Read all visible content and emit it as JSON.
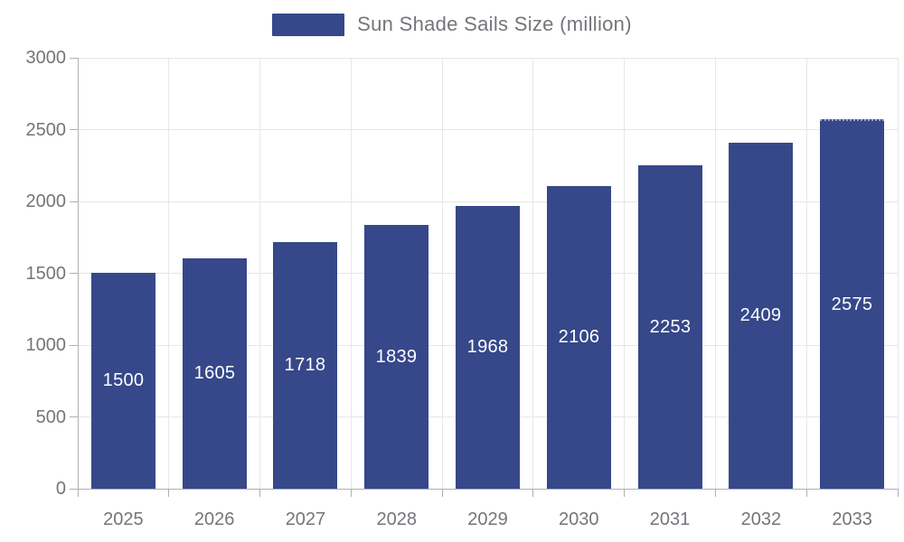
{
  "legend": {
    "label": "Sun Shade Sails Size (million)",
    "swatch_color": "#36488a"
  },
  "chart_data": {
    "type": "bar",
    "title": "Sun Shade Sails Size (million)",
    "series_name": "Sun Shade Sails Size (million)",
    "categories": [
      "2025",
      "2026",
      "2027",
      "2028",
      "2029",
      "2030",
      "2031",
      "2032",
      "2033"
    ],
    "values": [
      1500,
      1605,
      1718,
      1839,
      1968,
      2106,
      2253,
      2409,
      2575
    ],
    "value_labels": [
      "1500",
      "1605",
      "1718",
      "1839",
      "1968",
      "2106",
      "2253",
      "2409",
      "2575"
    ],
    "xlabel": "",
    "ylabel": "",
    "ylim": [
      0,
      3000
    ],
    "yticks": [
      0,
      500,
      1000,
      1500,
      2000,
      2500,
      3000
    ],
    "ytick_labels": [
      "0",
      "500",
      "1000",
      "1500",
      "2000",
      "2500",
      "3000"
    ],
    "grid": true,
    "legend_position": "top-center",
    "bar_color": "#36488a",
    "value_label_color": "#ffffff",
    "axis_text_color": "#74757a",
    "axis_line_color": "#aeb0b6",
    "gridline_color": "#e7e7ea"
  }
}
